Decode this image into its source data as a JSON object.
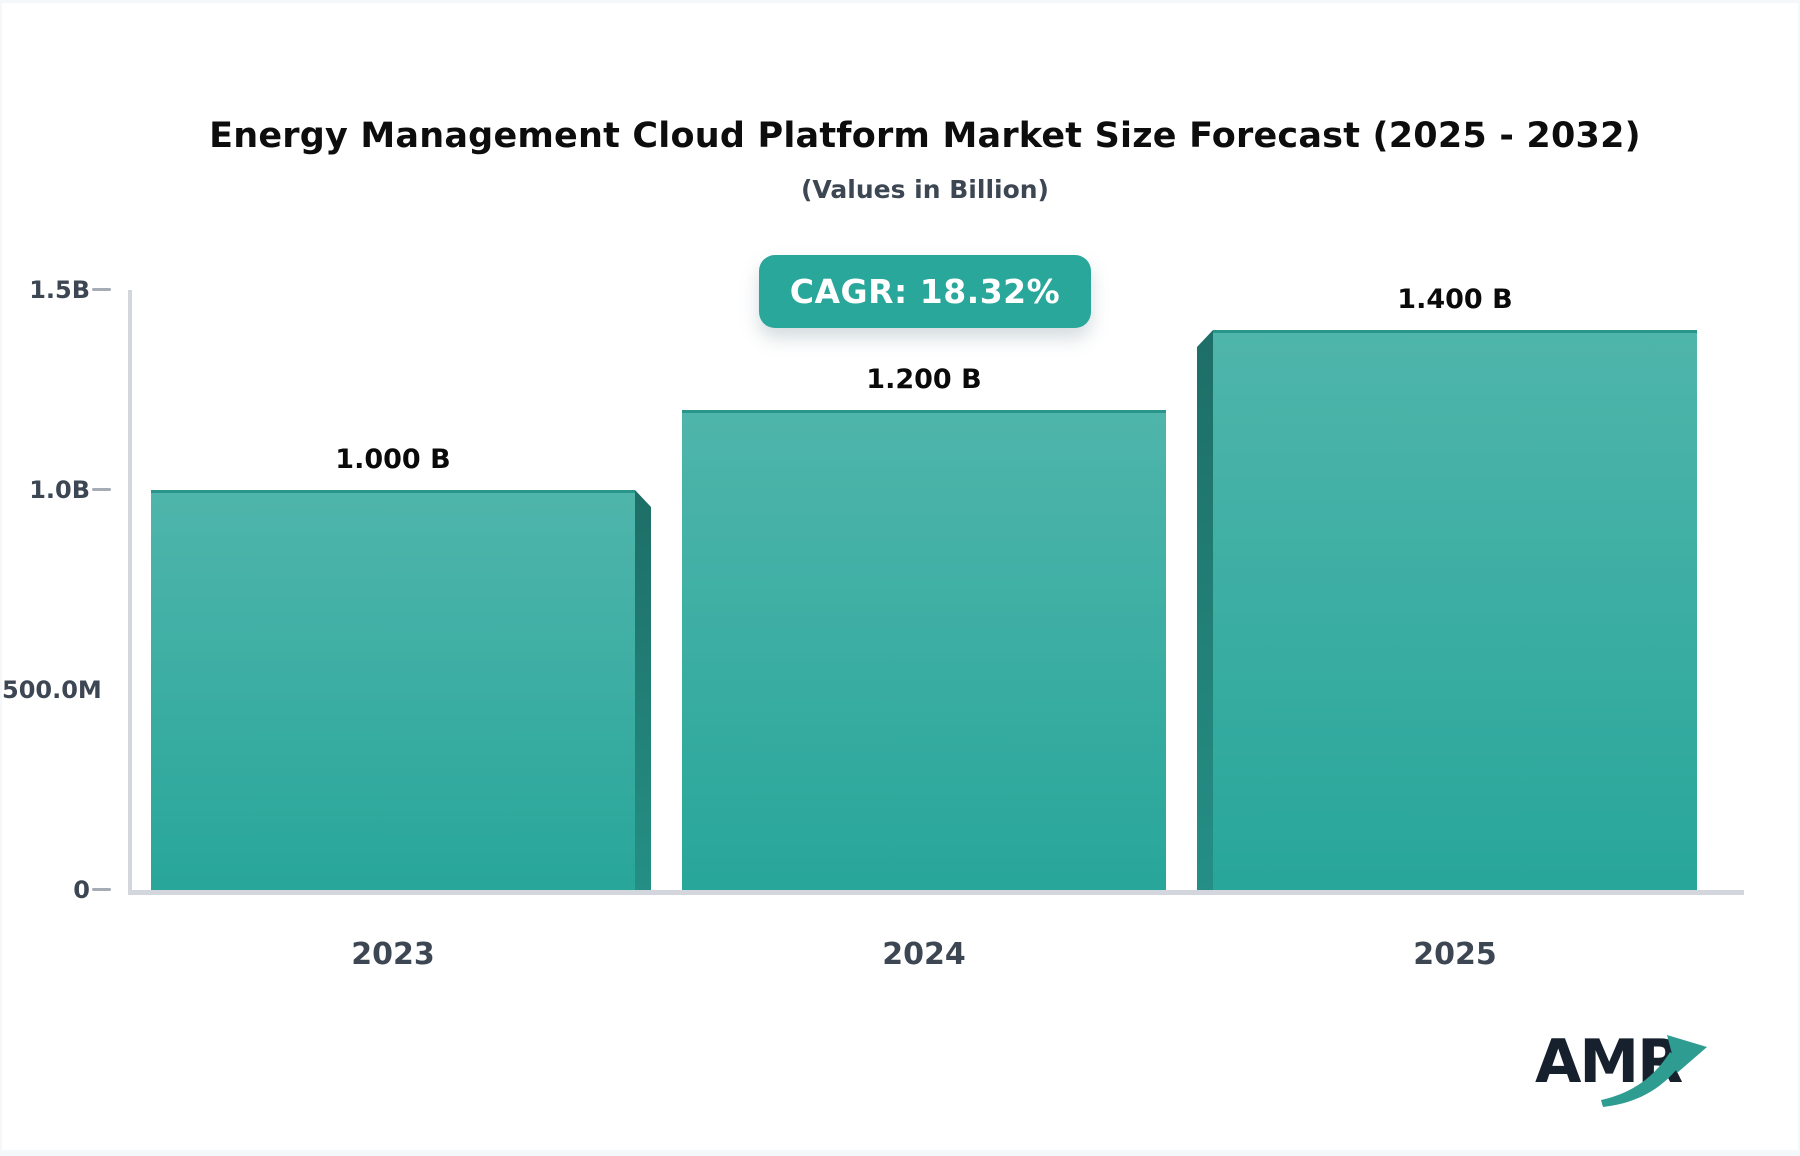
{
  "header": {
    "title": "Energy Management Cloud Platform Market Size Forecast (2025 - 2032)",
    "subtitle": "(Values in Billion)"
  },
  "badge": {
    "label": "CAGR: 18.32%"
  },
  "chart_data": {
    "type": "bar",
    "title": "Energy Management Cloud Platform Market Size Forecast (2025 - 2032)",
    "subtitle": "(Values in Billion)",
    "categories": [
      "2023",
      "2024",
      "2025"
    ],
    "values": [
      1.0,
      1.2,
      1.4
    ],
    "value_labels": [
      "1.000 B",
      "1.200 B",
      "1.400 B"
    ],
    "unit": "B",
    "xlabel": "",
    "ylabel": "",
    "ylim": [
      0,
      1.5
    ],
    "yticks": [
      {
        "label": "1.5B",
        "value": 1.5,
        "tick": true
      },
      {
        "label": "1.0B",
        "value": 1.0,
        "tick": true
      },
      {
        "label": "500.0M",
        "value": 0.5,
        "tick": false
      },
      {
        "label": "0",
        "value": 0.0,
        "tick": true
      }
    ],
    "grid": false,
    "legend": false,
    "style": "3d-perspective-bars",
    "annotations": [
      "CAGR: 18.32%"
    ]
  },
  "logo": {
    "text": "AMR",
    "icon": "trend-up-arrow"
  },
  "colors": {
    "page_bg": "#f5f8fa",
    "card_bg": "#ffffff",
    "title_text": "#0d0d0d",
    "muted_text": "#3d4653",
    "badge_bg": "#2aa79b",
    "badge_text": "#ffffff",
    "bar_top": "#4fb5ab",
    "bar_bottom": "#28a69a",
    "bar_edge": "#2a958b",
    "bar_side_top": "#1d6e67",
    "bar_side_bottom": "#258f85",
    "axis": "#d3d7dd",
    "tick": "#a6acb5",
    "logo_text": "#16212d",
    "logo_accent": "#2f9c92"
  }
}
